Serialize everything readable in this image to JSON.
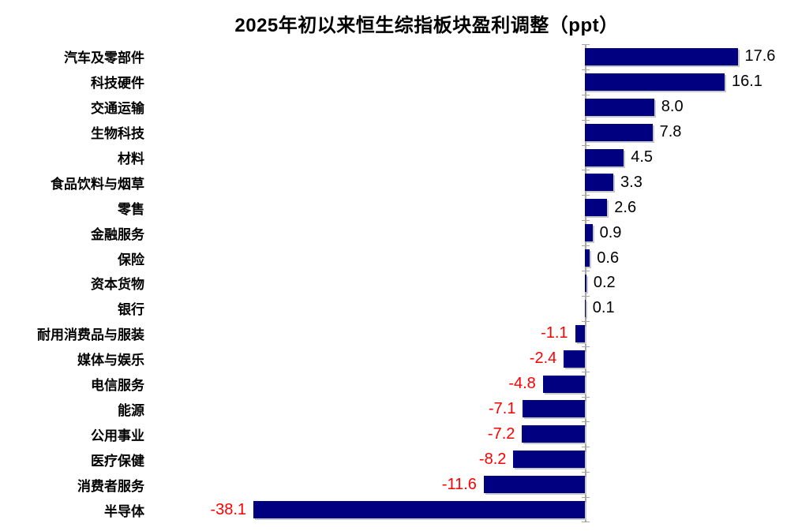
{
  "chart_data": {
    "type": "bar",
    "orientation": "horizontal",
    "title": "2025年初以来恒生综指板块盈利调整（ppt）",
    "unit": "ppt",
    "categories": [
      "汽车及零部件",
      "科技硬件",
      "交通运输",
      "生物科技",
      "材料",
      "食品饮料与烟草",
      "零售",
      "金融服务",
      "保险",
      "资本货物",
      "银行",
      "耐用消费品与服装",
      "媒体与娱乐",
      "电信服务",
      "能源",
      "公用事业",
      "医疗保健",
      "消费者服务",
      "半导体"
    ],
    "values": [
      17.6,
      16.1,
      8.0,
      7.8,
      4.5,
      3.3,
      2.6,
      0.9,
      0.6,
      0.2,
      0.1,
      -1.1,
      -2.4,
      -4.8,
      -7.1,
      -7.2,
      -8.2,
      -11.6,
      -38.1
    ],
    "value_labels": [
      "17.6",
      "16.1",
      "8.0",
      "7.8",
      "4.5",
      "3.3",
      "2.6",
      "0.9",
      "0.6",
      "0.2",
      "0.1",
      "-1.1",
      "-2.4",
      "-4.8",
      "-7.1",
      "-7.2",
      "-8.2",
      "-11.6",
      "-38.1"
    ],
    "xlim": [
      -50,
      24
    ],
    "grid": false,
    "legend": null,
    "colors": {
      "bar": "#000080",
      "bar_shadow": "#c9c9c9",
      "positive_label": "#000000",
      "negative_label": "#ff0000",
      "axis": "#a8a8a8",
      "title": "#000000"
    }
  }
}
